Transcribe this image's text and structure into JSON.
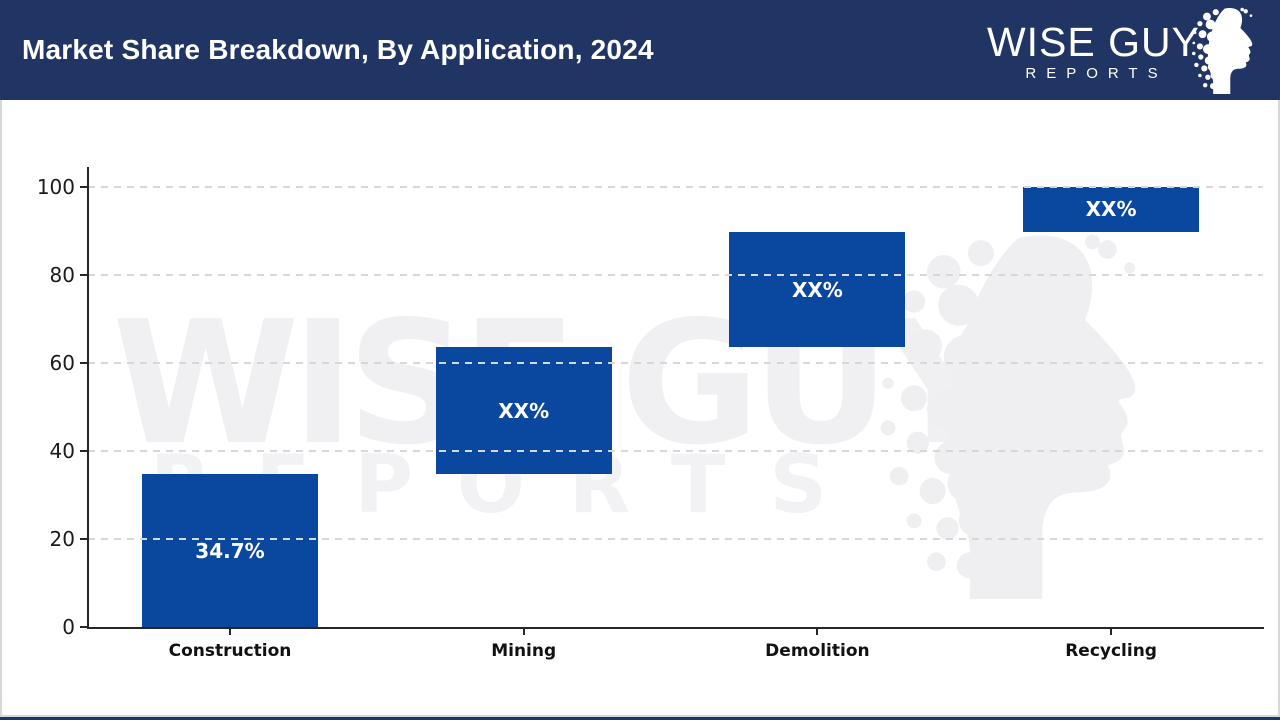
{
  "header": {
    "title": "Market Share Breakdown, By Application, 2024",
    "logo": {
      "line1": "WISE GUY",
      "line2": "REPORTS"
    }
  },
  "watermark": {
    "line1": "WISE GUY",
    "line2": "REPORTS"
  },
  "colors": {
    "header_bg": "#213564",
    "bar": "#0a479e",
    "grid": "#d8d8d8",
    "axis": "#262626",
    "bar_label": "#ffffff",
    "watermark": "#f0f0f3"
  },
  "chart_data": {
    "type": "bar",
    "subtype": "waterfall-floating",
    "title": "Market Share Breakdown, By Application, 2024",
    "xlabel": "",
    "ylabel": "",
    "categories": [
      "Construction",
      "Mining",
      "Demolition",
      "Recycling"
    ],
    "bars": [
      {
        "category": "Construction",
        "start": 0,
        "end": 34.7,
        "label": "34.7%"
      },
      {
        "category": "Mining",
        "start": 34.7,
        "end": 63.5,
        "label": "XX%"
      },
      {
        "category": "Demolition",
        "start": 63.5,
        "end": 89.8,
        "label": "XX%"
      },
      {
        "category": "Recycling",
        "start": 89.8,
        "end": 100,
        "label": "XX%"
      }
    ],
    "yticks": [
      0,
      20,
      40,
      60,
      80,
      100
    ],
    "ylim": [
      0,
      104.5
    ],
    "grid": "horizontal-dashed",
    "legend": "none"
  }
}
